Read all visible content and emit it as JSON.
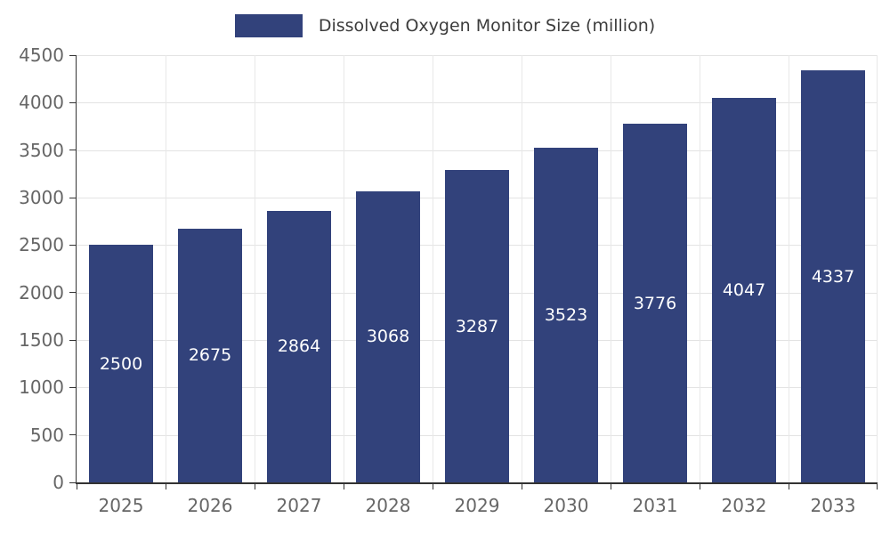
{
  "chart_data": {
    "type": "bar",
    "title": "Dissolved Oxygen Monitor Size (million)",
    "categories": [
      "2025",
      "2026",
      "2027",
      "2028",
      "2029",
      "2030",
      "2031",
      "2032",
      "2033"
    ],
    "values": [
      2500,
      2675,
      2864,
      3068,
      3287,
      3523,
      3776,
      4047,
      4337
    ],
    "xlabel": "",
    "ylabel": "",
    "ylim": [
      0,
      4500
    ],
    "ytick_step": 500,
    "grid": true,
    "legend_position": "top",
    "value_labels": "inside-center",
    "colors": {
      "bar": "#32427b",
      "grid_h": "#e3e3e3",
      "grid_v": "#e8e8e8",
      "axis": "#333333",
      "tick_label": "#666666",
      "value_label": "#ffffff",
      "legend_text": "#3c3c3c"
    }
  }
}
